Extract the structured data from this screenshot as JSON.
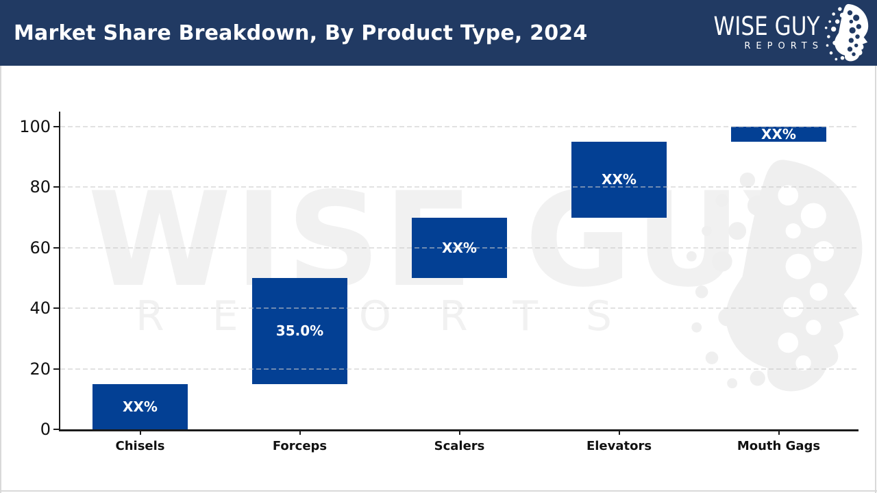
{
  "header": {
    "title": "Market Share Breakdown, By Product Type, 2024",
    "logo": {
      "line1": "WISE GUY",
      "line2": "REPORTS"
    }
  },
  "watermark": {
    "line1": "WISE GUY",
    "line2": "REPORTS"
  },
  "colors": {
    "header_bg": "#213a63",
    "bar_blue": "#034094",
    "bar_label": "#ffffff",
    "grid_gray": "#c9c9c9",
    "axis_black": "#1a1a1a",
    "watermark_gray": "#f1f1f1"
  },
  "chart_data": {
    "type": "bar",
    "subtype": "waterfall",
    "title": "Market Share Breakdown, By Product Type, 2024",
    "categories": [
      "Chisels",
      "Forceps",
      "Scalers",
      "Elevators",
      "Mouth Gags"
    ],
    "segments": [
      {
        "category": "Chisels",
        "start": 0,
        "end": 15,
        "label": "XX%"
      },
      {
        "category": "Forceps",
        "start": 15,
        "end": 50,
        "label": "35.0%"
      },
      {
        "category": "Scalers",
        "start": 50,
        "end": 70,
        "label": "XX%"
      },
      {
        "category": "Elevators",
        "start": 70,
        "end": 95,
        "label": "XX%"
      },
      {
        "category": "Mouth Gags",
        "start": 95,
        "end": 100,
        "label": "XX%"
      }
    ],
    "yticks": [
      0,
      20,
      40,
      60,
      80,
      100
    ],
    "ylim": [
      0,
      105
    ],
    "xlabel": "",
    "ylabel": "",
    "grid": "horizontal dashed, drawn over bars",
    "legend": "none",
    "bar_color": "#034094",
    "label_color": "#ffffff"
  }
}
